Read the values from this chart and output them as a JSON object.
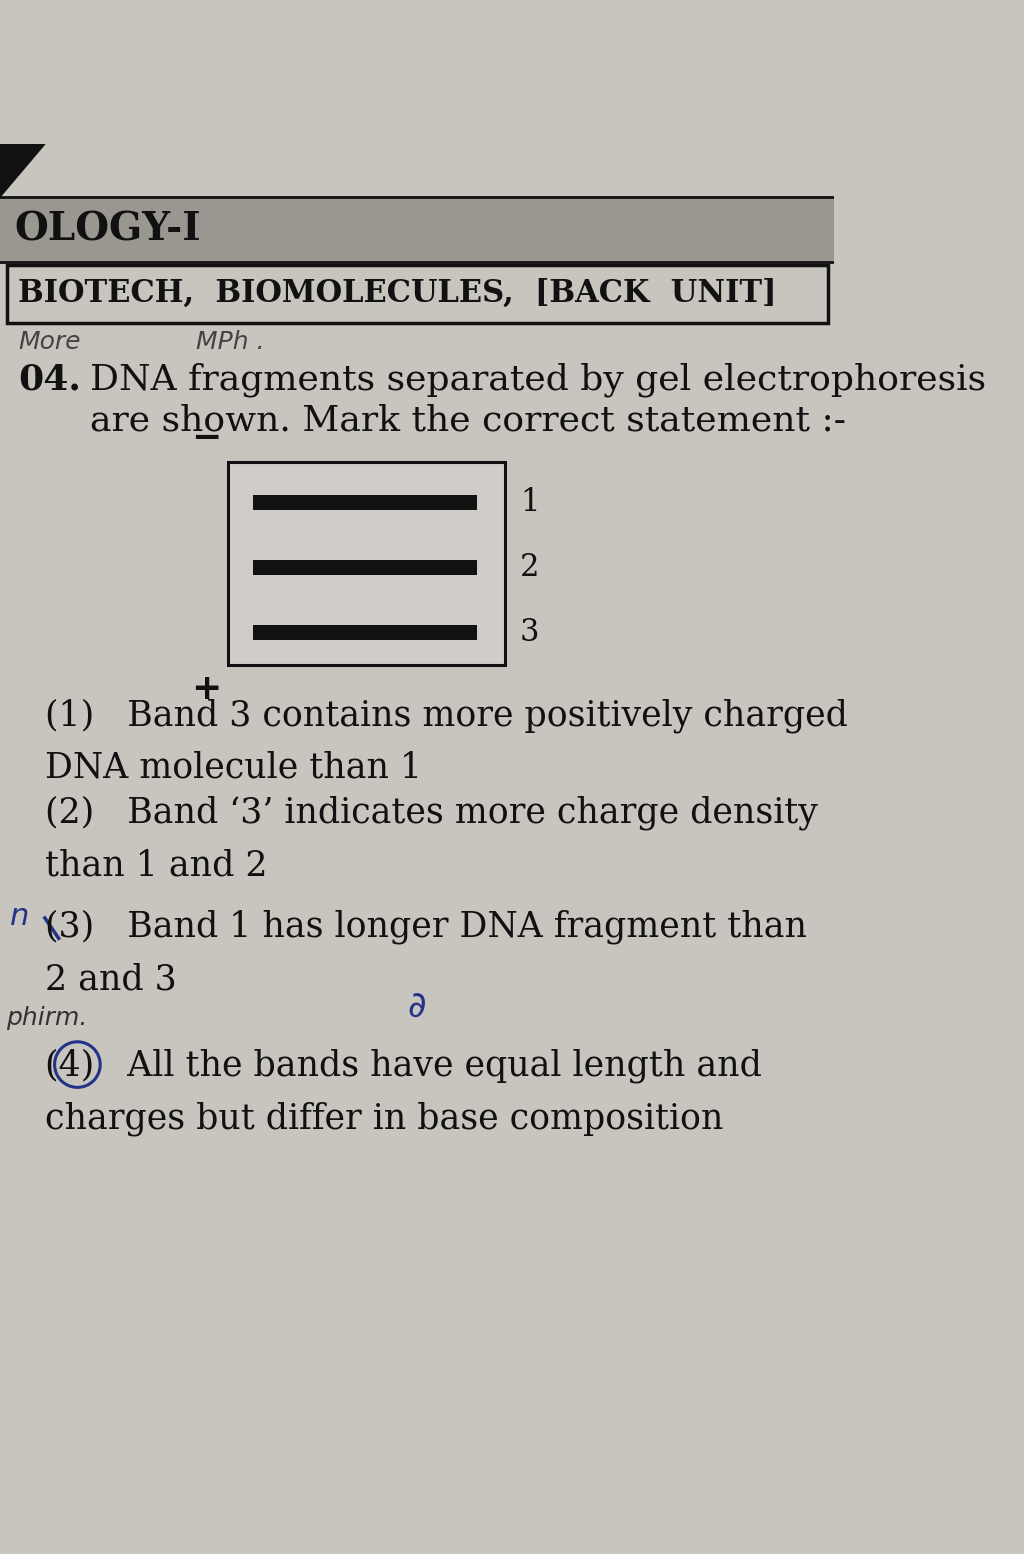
{
  "bg_color": "#c8c4be",
  "top_strip_color": "#1a1a1a",
  "header_band_color": "#9a9690",
  "header_text": "OLOGY-I",
  "subheader_text": "BIOTECH,  BIOMOLECULES,  [BACK  UNIT]",
  "handwriting_more": "More",
  "handwriting_mph": "MPh .",
  "question_number": "04.",
  "question_text_line1": "DNA fragments separated by gel electrophoresis",
  "question_text_line2": "are shown. Mark the correct statement :-",
  "option1_line1": "(1)   Band 3 contains more positively charged",
  "option1_line2": "      DNA molecule than 1",
  "option2_line1": "(2)   Band ‘3’ indicates more charge density",
  "option2_line2": "      than 1 and 2",
  "option3_line1": "(3)   Band 1 has longer DNA fragment than",
  "option3_line2": "      2 and 3",
  "option4_line1": "(4)   All the bands have equal length and",
  "option4_line2": "      charges but differ in base composition",
  "text_color": "#111111",
  "band_color": "#111111",
  "box_color": "#111111",
  "font_size_header": 28,
  "font_size_subheader": 22,
  "font_size_handwriting": 18,
  "font_size_question_num": 26,
  "font_size_question": 26,
  "font_size_options": 25,
  "font_size_band_label": 22,
  "font_size_pole": 22
}
